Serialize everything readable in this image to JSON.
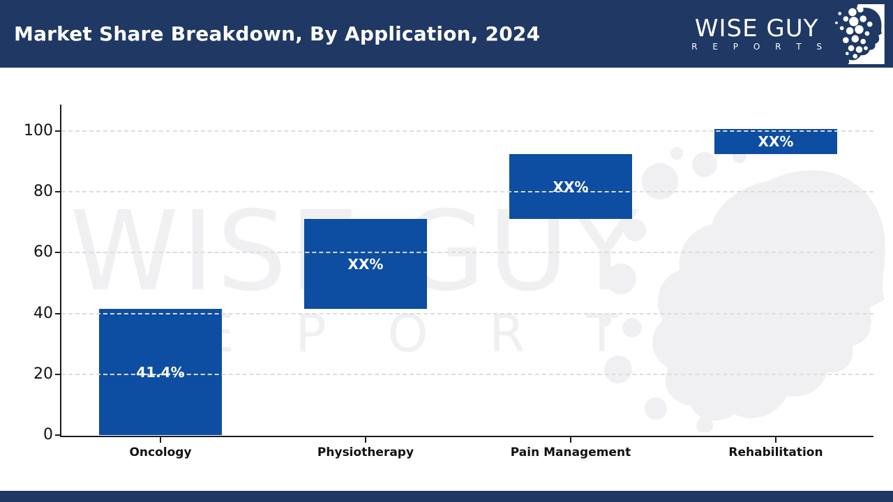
{
  "header": {
    "title": "Market Share Breakdown, By Application, 2024"
  },
  "logo": {
    "name_top": "WISE GUY",
    "name_bottom": "R E P O R T S",
    "face_icon": "dotted-head-profile",
    "background_color": "#1f3864",
    "text_color": "#ffffff"
  },
  "watermark": {
    "line_top": "WISE GUY",
    "line_bottom": "R E P O R T S",
    "color": "#f0f0f2"
  },
  "footer": {
    "background_color": "#1f3864"
  },
  "chart_data": {
    "type": "bar",
    "subtype": "waterfall",
    "title": "Market Share Breakdown, By Application, 2024",
    "xlabel": "",
    "ylabel": "",
    "categories": [
      "Oncology",
      "Physiotherapy",
      "Pain Management",
      "Rehabilitation"
    ],
    "segments": [
      {
        "category": "Oncology",
        "start": 0,
        "end": 41.4,
        "label": "41.4%"
      },
      {
        "category": "Physiotherapy",
        "start": 41.4,
        "end": 71,
        "label": "XX%"
      },
      {
        "category": "Pain Management",
        "start": 71,
        "end": 92.5,
        "label": "XX%"
      },
      {
        "category": "Rehabilitation",
        "start": 92.5,
        "end": 100.7,
        "label": "XX%"
      }
    ],
    "bar_labels": [
      "41.4%",
      "XX%",
      "XX%",
      "XX%"
    ],
    "yticks": [
      0,
      20,
      40,
      60,
      80,
      100
    ],
    "ylim": [
      0,
      108
    ],
    "grid": "dashed-horizontal",
    "legend": "none",
    "bar_color": "#0d4da2",
    "label_color": "#ffffff",
    "axis_color": "#1a1a1a",
    "grid_color": "#dcdcdc"
  }
}
